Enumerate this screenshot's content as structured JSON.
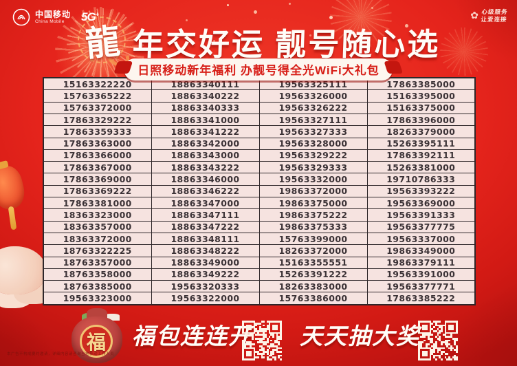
{
  "brand": {
    "logo_cn": "中国移动",
    "logo_en": "China Mobile",
    "logo_5g": "5G",
    "logo_5g_plus": "+",
    "seal_line1": "心级服务",
    "seal_line2": "让爱连接"
  },
  "title": {
    "dragon_char": "龍",
    "main": "年交好运 靓号随心选"
  },
  "banner": {
    "text": "日照移动新年福利 办靓号得全光WiFi大礼包"
  },
  "numbers_table": {
    "columns": 4,
    "rows": [
      [
        "15163322220",
        "18863340111",
        "19563325111",
        "17863385000"
      ],
      [
        "15763365222",
        "18863340222",
        "19563326000",
        "15163395000"
      ],
      [
        "15763372000",
        "18863340333",
        "19563326222",
        "15163375000"
      ],
      [
        "17863329222",
        "18863341000",
        "19563327111",
        "17863396000"
      ],
      [
        "17863359333",
        "18863341222",
        "19563327333",
        "18263379000"
      ],
      [
        "17863363000",
        "18863342000",
        "19563328000",
        "15263395111"
      ],
      [
        "17863366000",
        "18863343000",
        "19563329222",
        "17863392111"
      ],
      [
        "17863367000",
        "18863343222",
        "19563329333",
        "15263381000"
      ],
      [
        "17863369000",
        "18863346000",
        "19563332000",
        "19710786333"
      ],
      [
        "17863369222",
        "18863346222",
        "19863372000",
        "19563393222"
      ],
      [
        "17863381000",
        "18863347000",
        "19863375000",
        "19563369000"
      ],
      [
        "18363323000",
        "18863347111",
        "19863375222",
        "19563391333"
      ],
      [
        "18363357000",
        "18863347222",
        "19863375333",
        "19563377775"
      ],
      [
        "18363372000",
        "18863348111",
        "15763399000",
        "19563337000"
      ],
      [
        "18763322225",
        "18863348222",
        "18263372000",
        "19863349000"
      ],
      [
        "18763357000",
        "18863349000",
        "15163355551",
        "19863379111"
      ],
      [
        "18763358000",
        "18863349222",
        "15263391222",
        "19563391000"
      ],
      [
        "18763385000",
        "19563320333",
        "18263383000",
        "19563377771"
      ],
      [
        "19563323000",
        "19563322000",
        "15763386000",
        "17863385222"
      ]
    ]
  },
  "footer": {
    "fu_char": "福",
    "slogan_left": "福包连连开",
    "slogan_right": "天天抽大奖"
  },
  "fine_print": "本广告不构成要约邀请，详细内容请咨询当地移动工作人员",
  "colors": {
    "background_red": "#e5241c",
    "cell_pink": "#f6e3e0",
    "border_dark": "#2e2629",
    "banner_red": "#d71f18",
    "gold": "#f0c472",
    "white": "#fffdf8"
  }
}
